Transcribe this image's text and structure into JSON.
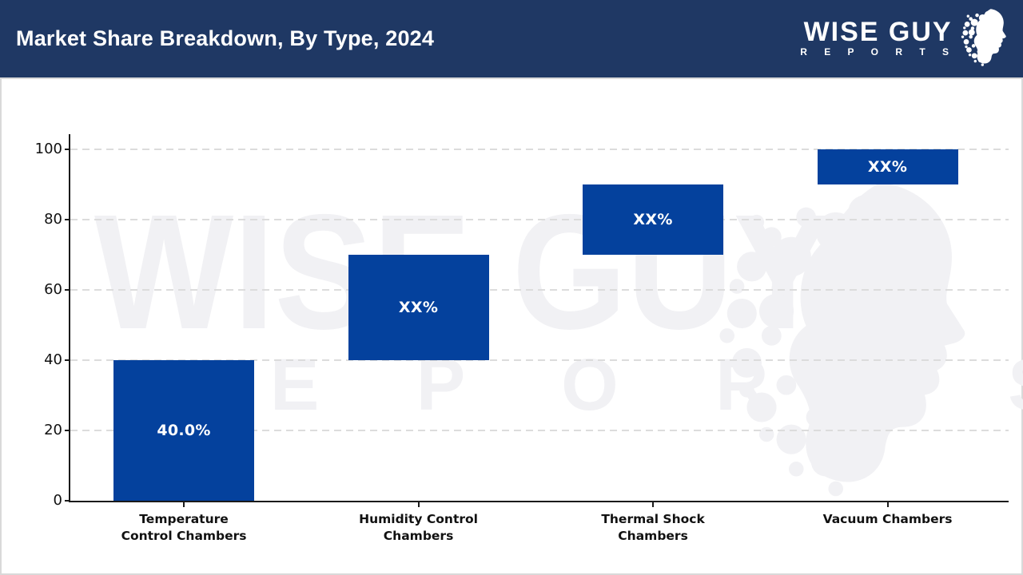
{
  "header": {
    "title": "Market Share Breakdown, By Type, 2024",
    "logo": {
      "line1": "WISE GUY",
      "line2": "R E P O R T S"
    }
  },
  "watermark": {
    "line1": "WISE GUY",
    "line2": "R E P O R T S"
  },
  "chart_data": {
    "type": "bar",
    "variant": "waterfall",
    "title": "Market Share Breakdown, By Type, 2024",
    "categories": [
      "Temperature Control Chambers",
      "Humidity Control Chambers",
      "Thermal Shock Chambers",
      "Vacuum Chambers"
    ],
    "category_lines": [
      [
        "Temperature",
        "Control Chambers"
      ],
      [
        "Humidity Control",
        "Chambers"
      ],
      [
        "Thermal Shock",
        "Chambers"
      ],
      [
        "Vacuum Chambers"
      ]
    ],
    "segments": [
      {
        "category": "Temperature Control Chambers",
        "start": 0,
        "end": 40,
        "value": 40,
        "label": "40.0%"
      },
      {
        "category": "Humidity Control Chambers",
        "start": 40,
        "end": 70,
        "value": 30,
        "label": "XX%"
      },
      {
        "category": "Thermal Shock Chambers",
        "start": 70,
        "end": 90,
        "value": 20,
        "label": "XX%"
      },
      {
        "category": "Vacuum Chambers",
        "start": 90,
        "end": 100,
        "value": 10,
        "label": "XX%"
      }
    ],
    "yticks": [
      0,
      20,
      40,
      60,
      80,
      100
    ],
    "ylim": [
      0,
      104
    ],
    "xlabel": "",
    "ylabel": "",
    "grid": "horizontal-dashed",
    "legend": "none",
    "colors": {
      "bar": "#04419d",
      "bar_label": "#ffffff",
      "axis": "#1a1a1a",
      "grid": "#dcdcdc",
      "header_bg": "#1f3864",
      "watermark": "#f1f1f4"
    }
  }
}
